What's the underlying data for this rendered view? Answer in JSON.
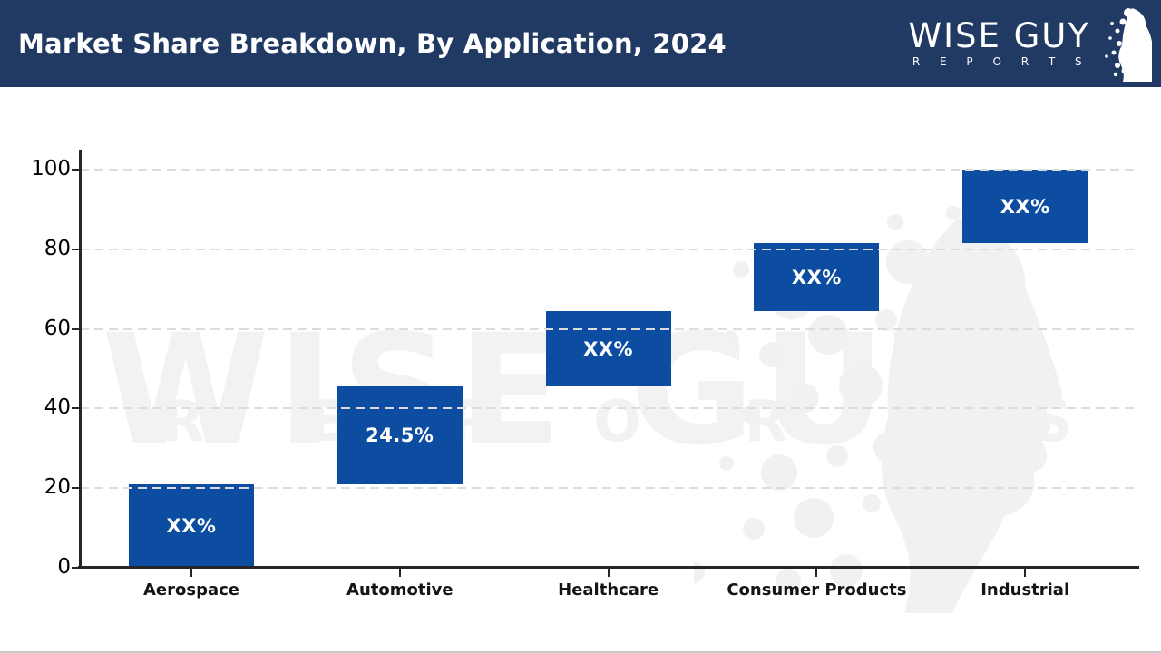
{
  "header": {
    "title": "Market Share Breakdown, By Application, 2024",
    "logo": {
      "line1": "WISE GUY",
      "line2": "R E P O R T S"
    }
  },
  "watermark": {
    "line1": "WISE GUY",
    "line2": "R E P O R T S"
  },
  "colors": {
    "header_bg": "#213a63",
    "bar": "#0c4da1",
    "gridline": "#dcdcdc",
    "axis": "#262626",
    "watermark": "#f2f2f3",
    "bar_label_text": "#ffffff",
    "title_text": "#ffffff"
  },
  "chart_data": {
    "type": "bar",
    "subtype": "waterfall",
    "title": "Market Share Breakdown, By Application, 2024",
    "xlabel": "",
    "ylabel": "",
    "categories": [
      "Aerospace",
      "Automotive",
      "Healthcare",
      "Consumer Products",
      "Industrial"
    ],
    "segments": [
      {
        "category": "Aerospace",
        "start": 0,
        "end": 21,
        "label": "XX%"
      },
      {
        "category": "Automotive",
        "start": 21,
        "end": 45.5,
        "label": "24.5%"
      },
      {
        "category": "Healthcare",
        "start": 45.5,
        "end": 64.5,
        "label": "XX%"
      },
      {
        "category": "Consumer Products",
        "start": 64.5,
        "end": 81.5,
        "label": "XX%"
      },
      {
        "category": "Industrial",
        "start": 81.5,
        "end": 100,
        "label": "XX%"
      }
    ],
    "yticks": [
      0,
      20,
      40,
      60,
      80,
      100
    ],
    "ylim": [
      0,
      100
    ],
    "grid": "horizontal-dashed-over-bars",
    "legend": "none"
  }
}
